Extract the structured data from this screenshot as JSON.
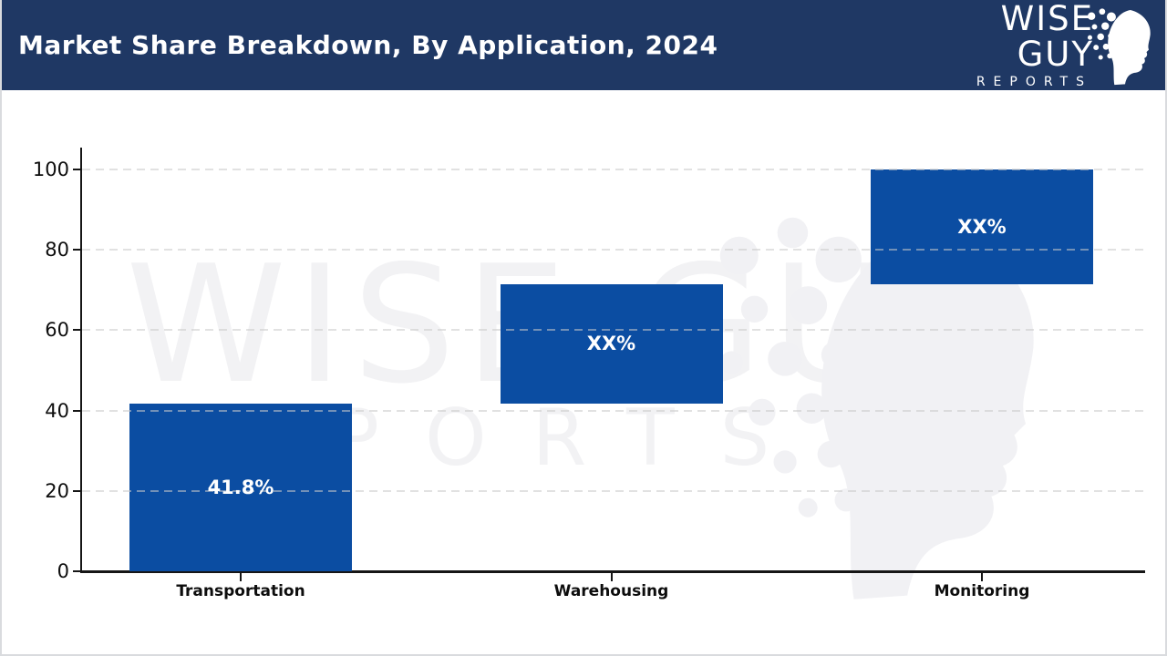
{
  "header": {
    "title": "Market Share Breakdown, By Application, 2024",
    "bg_color": "#1f3864",
    "logo": {
      "line1": "WISE GUY",
      "line2": "REPORTS"
    }
  },
  "watermark": {
    "line1": "WISE GUY",
    "line2": "REPORTS"
  },
  "chart_data": {
    "type": "bar",
    "subtype": "floating-segment-waterfall",
    "title": "Market Share Breakdown, By Application, 2024",
    "categories": [
      "Transportation",
      "Warehousing",
      "Monitoring"
    ],
    "segments": [
      {
        "category": "Transportation",
        "start": 0,
        "end": 41.8,
        "label": "41.8%"
      },
      {
        "category": "Warehousing",
        "start": 41.8,
        "end": 71.4,
        "label": "XX%"
      },
      {
        "category": "Monitoring",
        "start": 71.4,
        "end": 100,
        "label": "XX%"
      }
    ],
    "xlabel": "",
    "ylabel": "",
    "ylim": [
      0,
      100
    ],
    "yticks": [
      0,
      20,
      40,
      60,
      80,
      100
    ],
    "grid": "horizontal dashed, drawn over bars",
    "legend": "none",
    "bar_color": "#0b4da2",
    "bar_label_color": "#ffffff",
    "axis_color": "#161616",
    "grid_color": "#d9d9d9",
    "watermark_color": "#f2f2f4"
  }
}
